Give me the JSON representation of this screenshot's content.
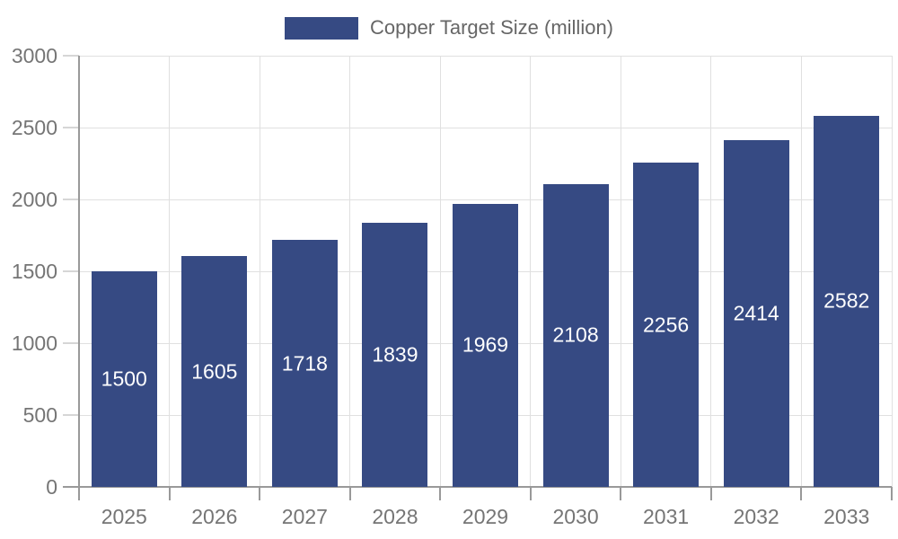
{
  "legend": {
    "label": "Copper Target Size (million)",
    "position": "top"
  },
  "chart_data": {
    "type": "bar",
    "title": "",
    "series_name": "Copper Target Size (million)",
    "categories": [
      "2025",
      "2026",
      "2027",
      "2028",
      "2029",
      "2030",
      "2031",
      "2032",
      "2033"
    ],
    "values": [
      1500,
      1605,
      1718,
      1839,
      1969,
      2108,
      2256,
      2414,
      2582
    ],
    "xlabel": "",
    "ylabel": "",
    "ylim": [
      0,
      3000
    ],
    "ytick_step": 500,
    "grid": true,
    "legend_position": "top",
    "value_labels": "inside-center",
    "colors": {
      "bar": "#364A83",
      "gridline": "#E0E0E0",
      "axis": "#999999",
      "axis_label": "#757575",
      "value_label": "#FFFFFF",
      "legend_text": "#666666",
      "background": "#FFFFFF"
    }
  }
}
